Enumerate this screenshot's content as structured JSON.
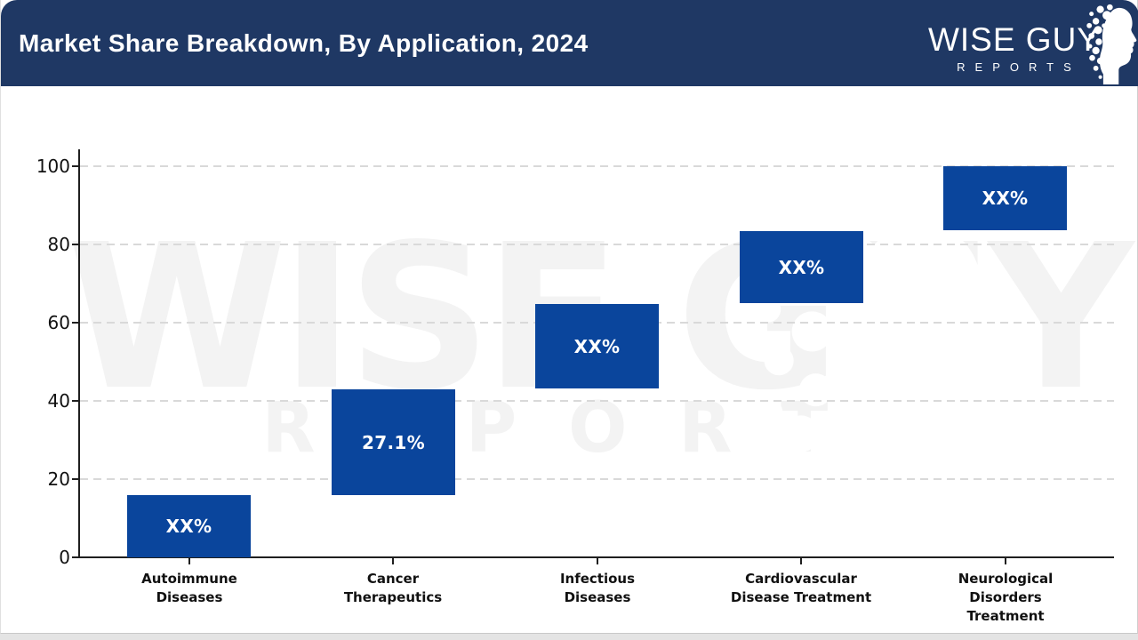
{
  "colors": {
    "header_bg": "#1f3864",
    "bar": "#0a459c",
    "grid": "#d9d9d9",
    "axis": "#1f1f1f",
    "tick_text": "#111111",
    "watermark": "#f3f3f3",
    "footer_bg": "#e4e4e4"
  },
  "header": {
    "title": "Market Share Breakdown, By Application, 2024",
    "logo": {
      "line1": "WISE GUY",
      "line2": "REPORTS"
    }
  },
  "watermark": {
    "line1": "WISE GUY",
    "line2": "REPORTS"
  },
  "chart_data": {
    "type": "bar",
    "subtype": "waterfall-floating-bars",
    "title": "Market Share Breakdown, By Application, 2024",
    "xlabel": "",
    "ylabel": "",
    "ylim": [
      0,
      100
    ],
    "yticks": [
      0,
      20,
      40,
      60,
      80,
      100
    ],
    "grid": "horizontal-dashed",
    "legend": "none",
    "categories": [
      "Autoimmune Diseases",
      "Cancer Therapeutics",
      "Infectious Diseases",
      "Cardiovascular Disease Treatment",
      "Neurological Disorders Treatment"
    ],
    "category_label_lines": [
      [
        "Autoimmune",
        "Diseases"
      ],
      [
        "Cancer",
        "Therapeutics"
      ],
      [
        "Infectious",
        "Diseases"
      ],
      [
        "Cardiovascular",
        "Disease Treatment"
      ],
      [
        "Neurological",
        "Disorders",
        "Treatment"
      ]
    ],
    "bars": [
      {
        "category": "Autoimmune Diseases",
        "start": 0,
        "end": 16.0,
        "value_label": "XX%"
      },
      {
        "category": "Cancer Therapeutics",
        "start": 15.9,
        "end": 43.0,
        "value_label": "27.1%"
      },
      {
        "category": "Infectious Diseases",
        "start": 43.1,
        "end": 64.8,
        "value_label": "XX%"
      },
      {
        "category": "Cardiovascular Disease Treatment",
        "start": 65.0,
        "end": 83.4,
        "value_label": "XX%"
      },
      {
        "category": "Neurological Disorders Treatment",
        "start": 83.6,
        "end": 100.0,
        "value_label": "XX%"
      }
    ]
  }
}
